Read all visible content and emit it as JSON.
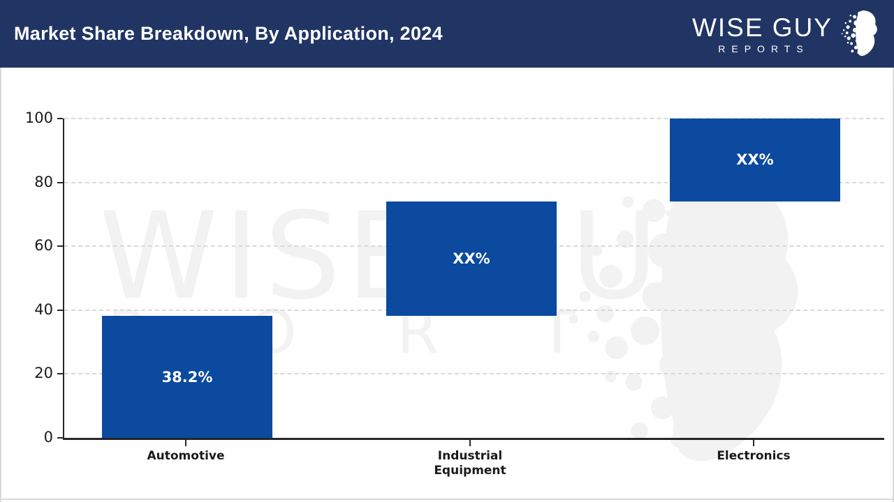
{
  "header": {
    "title": "Market Share Breakdown, By Application, 2024",
    "bg_color": "#213564",
    "logo": {
      "line1": "WISE GUY",
      "line2": "REPORTS"
    }
  },
  "watermark": {
    "line1": "WISE GUY",
    "line2": "R O R T S"
  },
  "chart_data": {
    "type": "bar",
    "subtype": "waterfall",
    "title": "Market Share Breakdown, By Application, 2024",
    "xlabel": "",
    "ylabel": "",
    "ylim": [
      0,
      100
    ],
    "yticks": [
      0,
      20,
      40,
      60,
      80,
      100
    ],
    "grid": "horizontal-dashed",
    "legend": "none",
    "bar_color": "#0b4a9e",
    "bar_label_color": "#ffffff",
    "categories": [
      "Automotive",
      "Industrial\nEquipment",
      "Electronics"
    ],
    "segments": [
      {
        "category": "Automotive",
        "start": 0,
        "end": 38.2,
        "bar_label": "38.2%"
      },
      {
        "category": "Industrial Equipment",
        "start": 38.2,
        "end": 74.1,
        "bar_label": "XX%"
      },
      {
        "category": "Electronics",
        "start": 74.1,
        "end": 100,
        "bar_label": "XX%"
      }
    ]
  }
}
